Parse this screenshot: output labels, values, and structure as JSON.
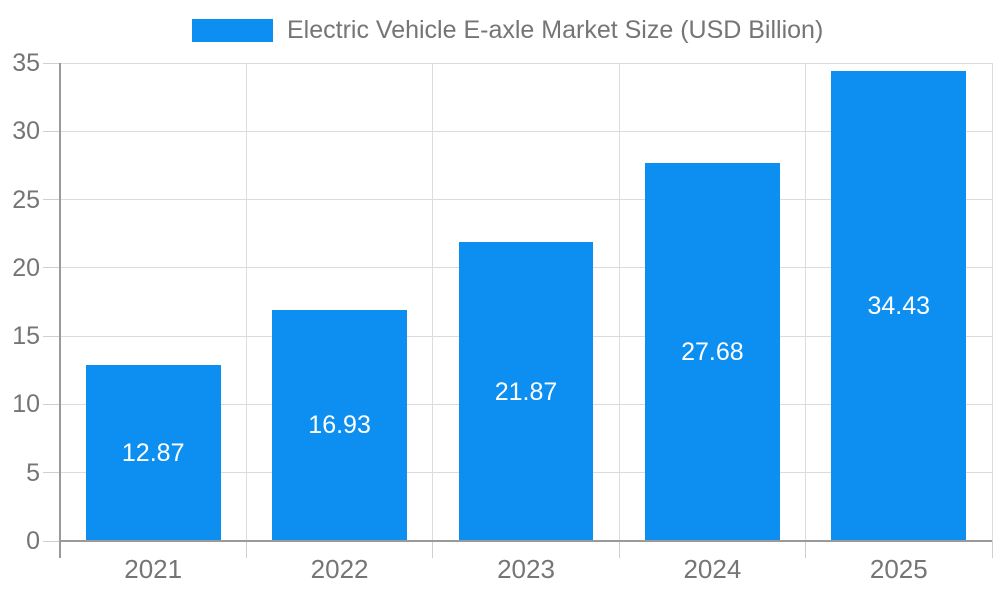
{
  "chart_data": {
    "type": "bar",
    "title": "Electric Vehicle E-axle Market Size (USD Billion)",
    "series_name": "Electric Vehicle E-axle Market Size (USD Billion)",
    "categories": [
      "2021",
      "2022",
      "2023",
      "2024",
      "2025"
    ],
    "values": [
      12.87,
      16.93,
      21.87,
      27.68,
      34.43
    ],
    "value_labels": [
      "12.87",
      "16.93",
      "21.87",
      "27.68",
      "34.43"
    ],
    "xlabel": "",
    "ylabel": "",
    "ylim": [
      0,
      35
    ],
    "yticks": [
      0,
      5,
      10,
      15,
      20,
      25,
      30,
      35
    ],
    "grid": true,
    "legend_position": "top",
    "bar_color": "#0D8FF2",
    "data_label_color": "#FFFFFF"
  },
  "style": {
    "accent_blue": "#0D8FF2",
    "grid_color": "#DCDCDC",
    "axis_color": "#9A9A9A",
    "tick_color": "#CFCFCF",
    "text_color": "#757575",
    "background": "#FFFFFF"
  }
}
